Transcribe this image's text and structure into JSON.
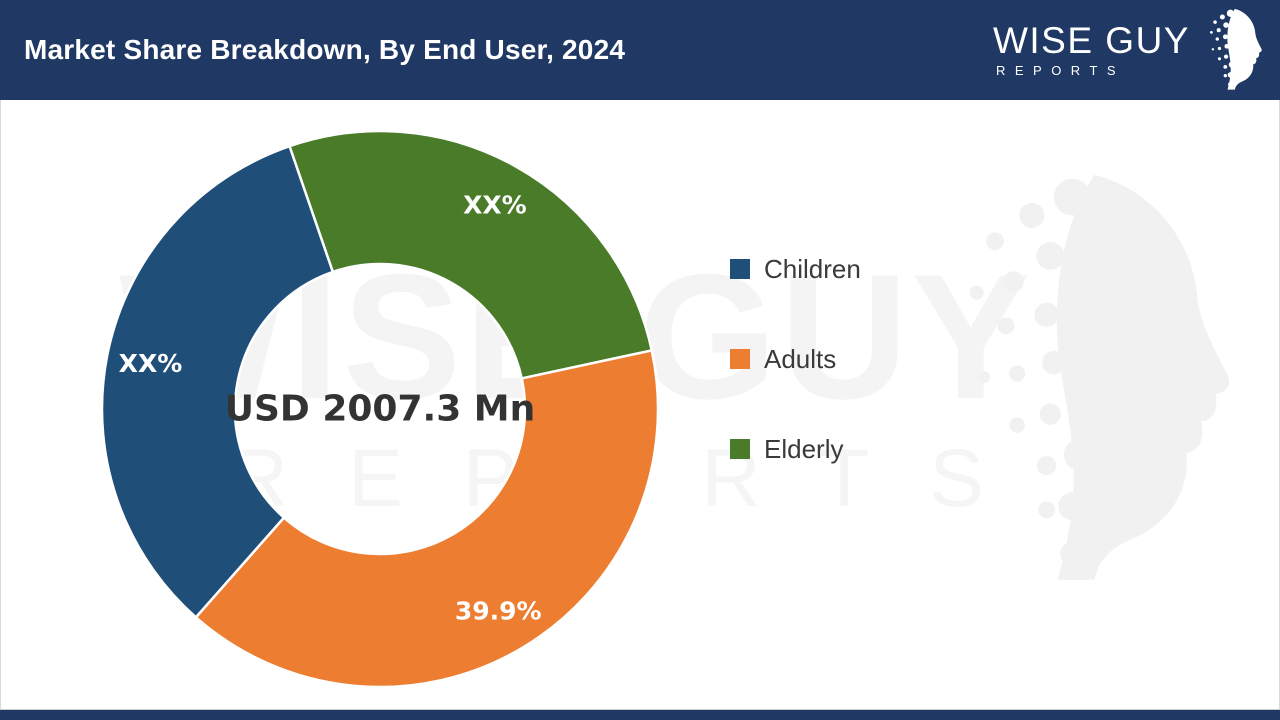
{
  "header": {
    "title": "Market Share Breakdown, By End User, 2024",
    "bg_color": "#1f3864",
    "logo": {
      "wordmark": "WISE GUY",
      "subtext": "REPORTS"
    }
  },
  "watermark": {
    "line1": "WISE GUY",
    "line2": "REPORTS"
  },
  "chart_data": {
    "type": "pie",
    "subtype": "donut",
    "title": "Market Share Breakdown, By End User, 2024",
    "center_label": "USD 2007.3 Mn",
    "categories": [
      "Children",
      "Adults",
      "Elderly"
    ],
    "series": [
      {
        "name": "Children",
        "value": 33.2,
        "display_label": "XX%",
        "color": "#1f4e79"
      },
      {
        "name": "Adults",
        "value": 39.9,
        "display_label": "39.9%",
        "color": "#ed7d31"
      },
      {
        "name": "Elderly",
        "value": 26.9,
        "display_label": "XX%",
        "color": "#4a7b28"
      }
    ],
    "rotation_deg": -19,
    "direction": "counterclockwise",
    "legend_position": "right",
    "donut_hole_ratio": 0.52,
    "slice_gap_color": "#ffffff"
  }
}
